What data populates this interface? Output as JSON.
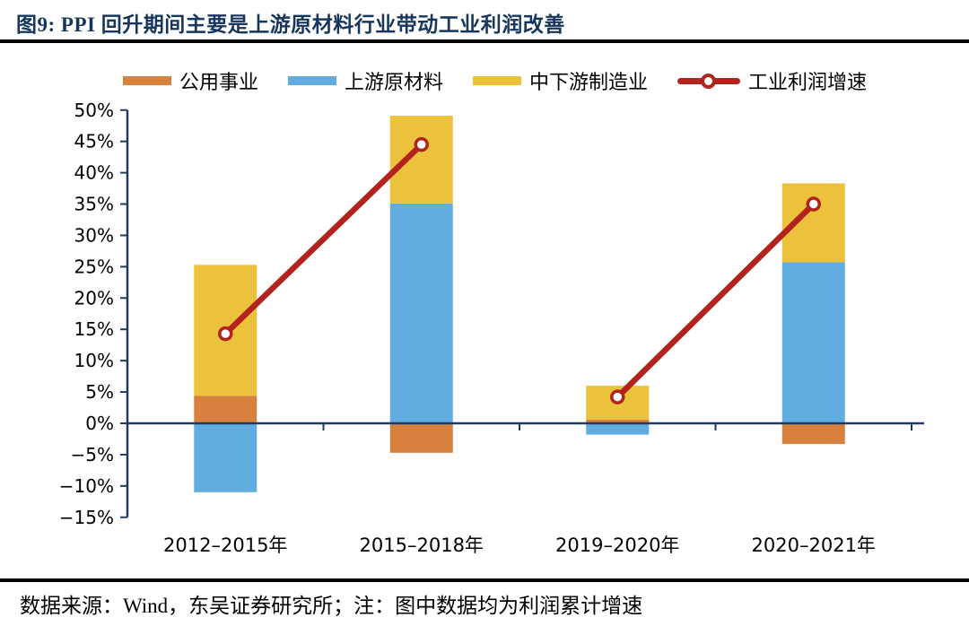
{
  "page": {
    "title": "图9:  PPI 回升期间主要是上游原材料行业带动工业利润改善",
    "title_color": "#17365D",
    "rule_color": "#000000",
    "source_note": "数据来源：Wind，东吴证券研究所；注：图中数据均为利润累计增速"
  },
  "chart_data": {
    "type": "bar",
    "subtype": "stacked-bar-with-line-overlay",
    "title": "PPI 回升期间主要是上游原材料行业带动工业利润改善",
    "categories": [
      "2012–2015年",
      "2015–2018年",
      "2019–2020年",
      "2020–2021年"
    ],
    "bar_series": [
      {
        "name": "公用事业",
        "color": "#D8813E",
        "values": [
          4.4,
          -4.7,
          0.6,
          -3.3
        ]
      },
      {
        "name": "上游原材料",
        "color": "#61ACE0",
        "values": [
          -11.0,
          35.1,
          -1.8,
          25.7
        ]
      },
      {
        "name": "中下游制造业",
        "color": "#ECC23C",
        "values": [
          20.9,
          14.0,
          5.4,
          12.6
        ]
      }
    ],
    "line_series": {
      "name": "工业利润增速",
      "color": "#B1231C",
      "marker": "open-circle",
      "values": [
        14.3,
        44.5,
        4.2,
        35.0
      ],
      "segments": [
        [
          0,
          1
        ],
        [
          2,
          3
        ]
      ]
    },
    "stack_totals_positive": [
      25.3,
      49.1,
      6.0,
      38.3
    ],
    "ylim": [
      -15,
      50
    ],
    "ytick_step": 5,
    "yticks": [
      {
        "v": 50,
        "label": "50%"
      },
      {
        "v": 45,
        "label": "45%"
      },
      {
        "v": 40,
        "label": "40%"
      },
      {
        "v": 35,
        "label": "35%"
      },
      {
        "v": 30,
        "label": "30%"
      },
      {
        "v": 25,
        "label": "25%"
      },
      {
        "v": 20,
        "label": "20%"
      },
      {
        "v": 15,
        "label": "15%"
      },
      {
        "v": 10,
        "label": "10%"
      },
      {
        "v": 5,
        "label": "5%"
      },
      {
        "v": 0,
        "label": "0%"
      },
      {
        "v": -5,
        "label": "−5%"
      },
      {
        "v": -10,
        "label": "−10%"
      },
      {
        "v": -15,
        "label": "−15%"
      }
    ],
    "axis_color": "#233A60",
    "grid": "off",
    "legend_position": "top"
  }
}
